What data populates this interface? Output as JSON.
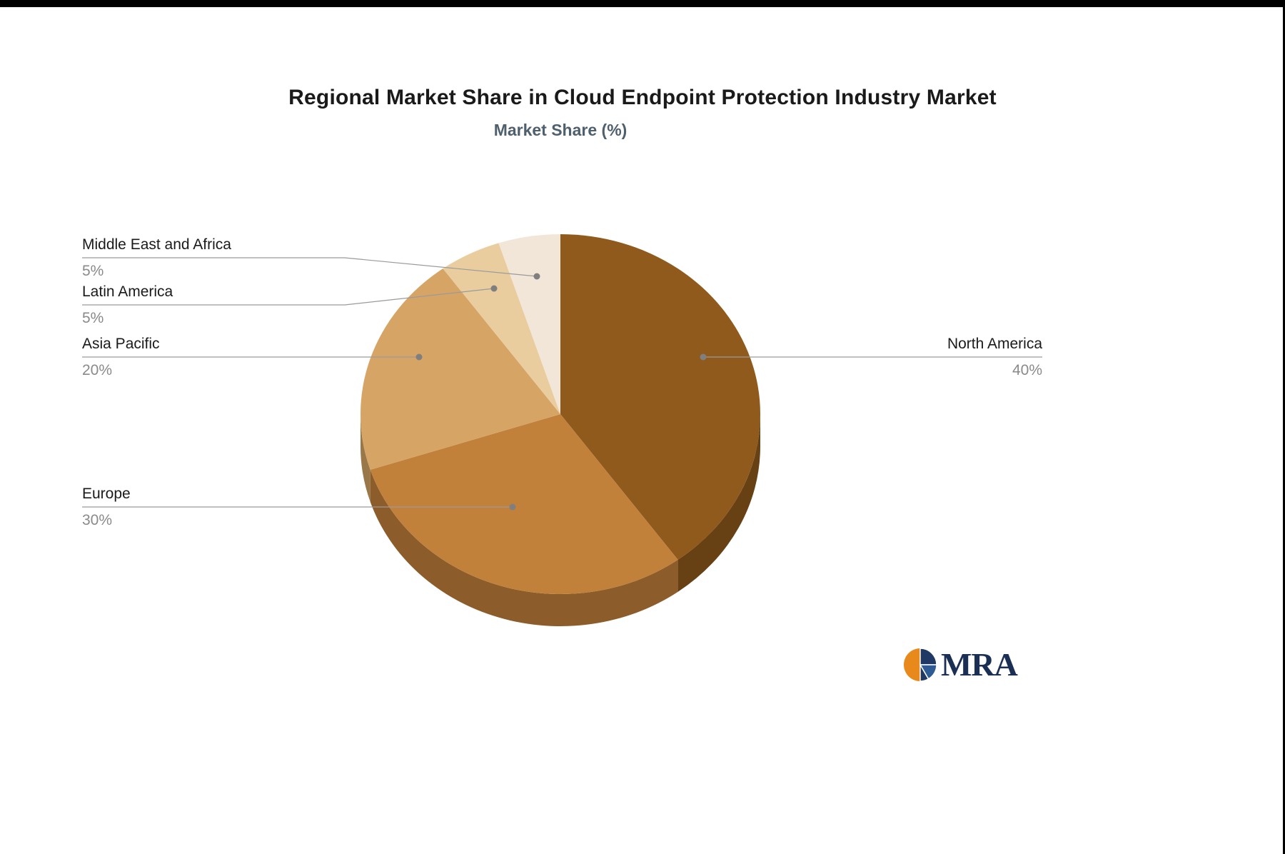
{
  "chart_data": {
    "type": "pie",
    "title": "Regional Market Share in Cloud Endpoint Protection Industry Market",
    "subtitle": "Market Share (%)",
    "unit": "%",
    "total": 100,
    "categories": [
      "North America",
      "Europe",
      "Asia Pacific",
      "Latin America",
      "Middle East and Africa"
    ],
    "values": [
      40,
      30,
      20,
      5,
      5
    ],
    "value_labels": [
      "40%",
      "30%",
      "20%",
      "5%",
      "5%"
    ],
    "colors": [
      "#8F5A1B",
      "#C2813A",
      "#D6A566",
      "#EACD9F",
      "#F2E6D8"
    ],
    "start_angle_deg": 0,
    "direction": "clockwise",
    "style": "3d-pie",
    "legend_position": "none",
    "label_style": "leader-lines"
  },
  "logo": {
    "text": "MRA",
    "icon_colors": [
      "#E8891B",
      "#1F3864",
      "#2F5B94"
    ]
  },
  "frame": {
    "color": "#000000"
  }
}
